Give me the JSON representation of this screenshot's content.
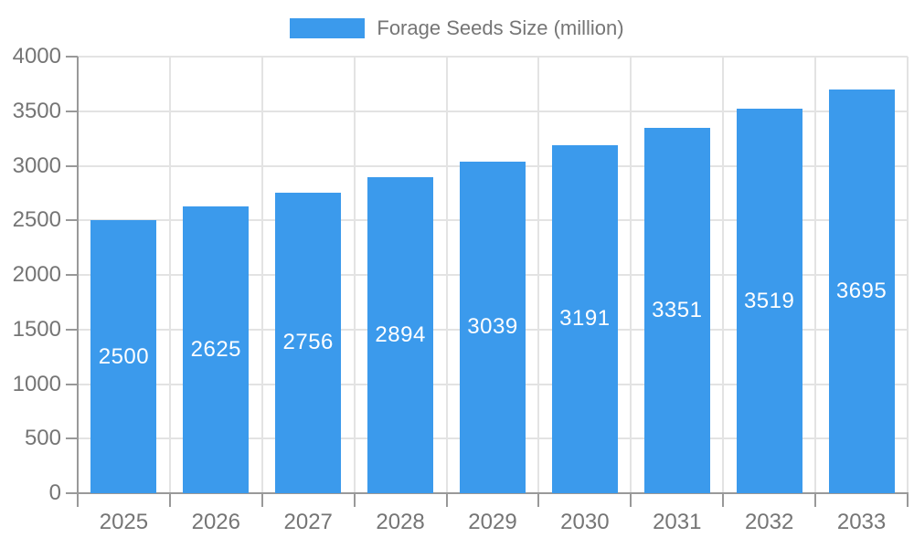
{
  "legend": {
    "items": [
      {
        "label": "Forage Seeds Size (million)",
        "color": "#3B9AEC"
      }
    ]
  },
  "chart_data": {
    "type": "bar",
    "title": "",
    "xlabel": "",
    "ylabel": "",
    "categories": [
      "2025",
      "2026",
      "2027",
      "2028",
      "2029",
      "2030",
      "2031",
      "2032",
      "2033"
    ],
    "series": [
      {
        "name": "Forage Seeds Size (million)",
        "color": "#3B9AEC",
        "values": [
          2500,
          2625,
          2756,
          2894,
          3039,
          3191,
          3351,
          3519,
          3695
        ]
      }
    ],
    "ylim": [
      0,
      4000
    ],
    "ytick_step": 500,
    "ytick_labels": [
      "0",
      "500",
      "1000",
      "1500",
      "2000",
      "2500",
      "3000",
      "3500",
      "4000"
    ],
    "grid": true,
    "legend_position": "top-center",
    "bar_value_labels_shown": true,
    "bar_value_label_color": "#FFFFFF"
  },
  "colors": {
    "bar": "#3B9AEC",
    "axis": "#999999",
    "grid": "#E3E3E3",
    "axis_text": "#757575",
    "legend_text": "#757575",
    "background": "#FFFFFF"
  }
}
